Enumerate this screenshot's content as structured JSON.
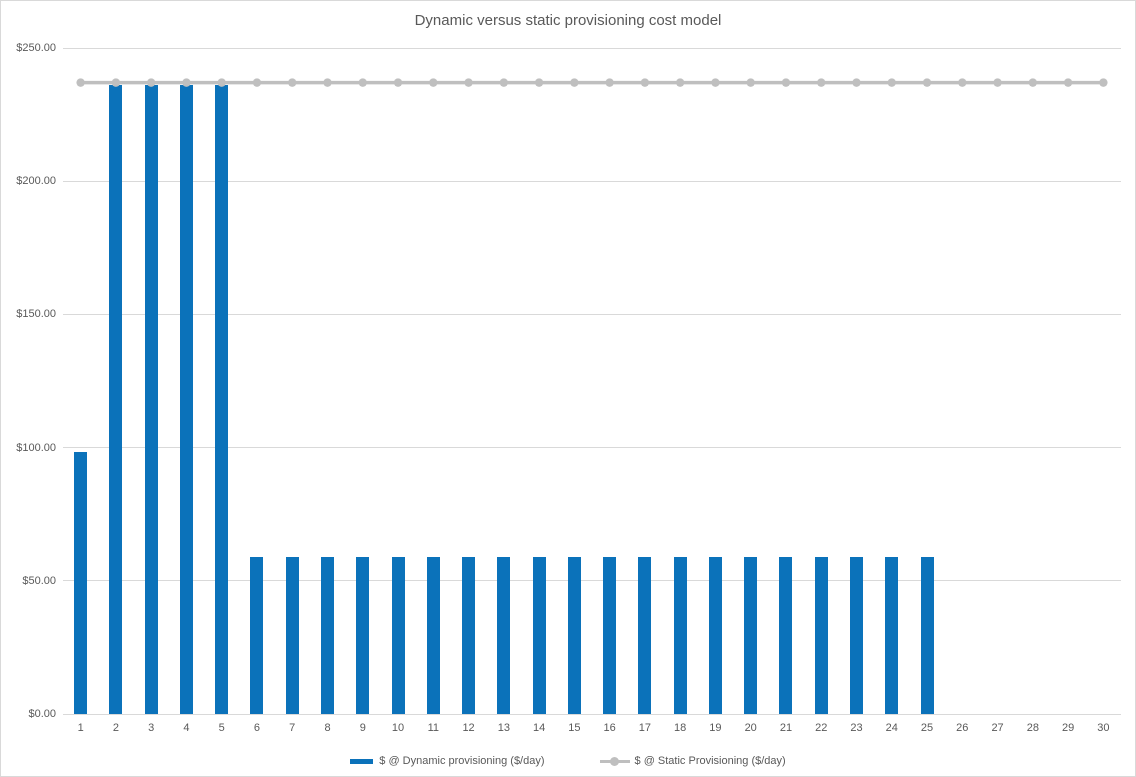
{
  "title": "Dynamic versus static provisioning cost model",
  "legend": {
    "dynamic_label": "$ @ Dynamic provisioning ($/day)",
    "static_label": "$ @ Static Provisioning ($/day)"
  },
  "colors": {
    "bar": "#0b72ba",
    "line": "#bfbfbf",
    "grid": "#d9d9d9",
    "axis_text": "#595959",
    "border": "#d9d9d9",
    "background": "#ffffff"
  },
  "chart_data": {
    "type": "bar",
    "title": "Dynamic versus static provisioning cost model",
    "xlabel": "",
    "ylabel": "",
    "categories": [
      1,
      2,
      3,
      4,
      5,
      6,
      7,
      8,
      9,
      10,
      11,
      12,
      13,
      14,
      15,
      16,
      17,
      18,
      19,
      20,
      21,
      22,
      23,
      24,
      25,
      26,
      27,
      28,
      29,
      30
    ],
    "series": [
      {
        "name": "$ @ Dynamic provisioning ($/day)",
        "type": "bar",
        "color": "#0b72ba",
        "values": [
          98.5,
          236,
          236,
          236,
          236,
          59,
          59,
          59,
          59,
          59,
          59,
          59,
          59,
          59,
          59,
          59,
          59,
          59,
          59,
          59,
          59,
          59,
          59,
          59,
          59,
          0,
          0,
          0,
          0,
          0
        ]
      },
      {
        "name": "$ @ Static Provisioning ($/day)",
        "type": "line",
        "color": "#bfbfbf",
        "marker": "circle",
        "values": [
          237,
          237,
          237,
          237,
          237,
          237,
          237,
          237,
          237,
          237,
          237,
          237,
          237,
          237,
          237,
          237,
          237,
          237,
          237,
          237,
          237,
          237,
          237,
          237,
          237,
          237,
          237,
          237,
          237,
          237
        ]
      }
    ],
    "ylim": [
      0,
      250
    ],
    "yticks": [
      0,
      50,
      100,
      150,
      200,
      250
    ],
    "ytick_labels": [
      "$0.00",
      "$50.00",
      "$100.00",
      "$150.00",
      "$200.00",
      "$250.00"
    ],
    "grid": true,
    "legend_position": "bottom"
  }
}
